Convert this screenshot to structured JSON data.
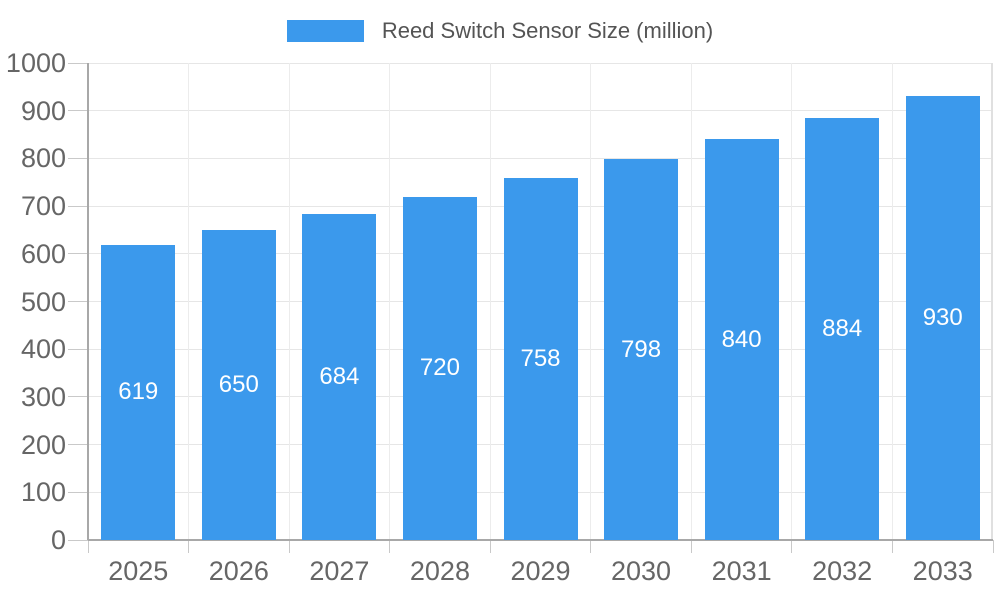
{
  "legend": {
    "label": "Reed Switch Sensor Size (million)"
  },
  "chart_data": {
    "type": "bar",
    "title": "",
    "xlabel": "",
    "ylabel": "",
    "series_name": "Reed Switch Sensor Size (million)",
    "categories": [
      "2025",
      "2026",
      "2027",
      "2028",
      "2029",
      "2030",
      "2031",
      "2032",
      "2033"
    ],
    "values": [
      619,
      650,
      684,
      720,
      758,
      798,
      840,
      884,
      930
    ],
    "data_labels_visible": true,
    "ylim": [
      0,
      1000
    ],
    "yticks": [
      0,
      100,
      200,
      300,
      400,
      500,
      600,
      700,
      800,
      900,
      1000
    ],
    "grid": true,
    "legend_position": "top-center",
    "bar_color": "#3B99EC",
    "data_label_color": "#ffffff",
    "axis_label_color": "#666666"
  }
}
